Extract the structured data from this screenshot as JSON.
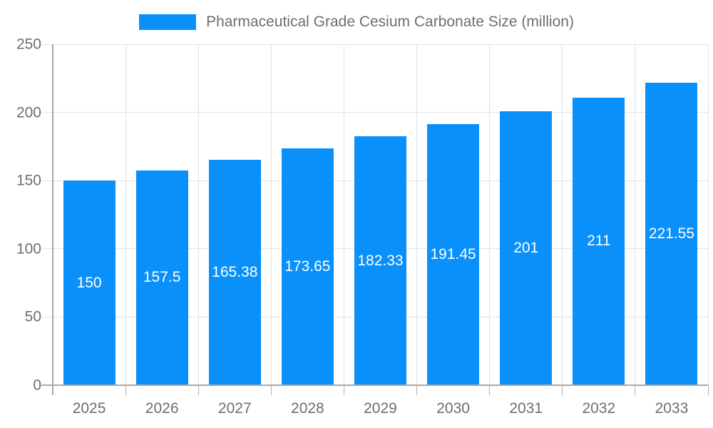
{
  "chart_data": {
    "type": "bar",
    "title": "Pharmaceutical Grade Cesium Carbonate Size (million)",
    "categories": [
      "2025",
      "2026",
      "2027",
      "2028",
      "2029",
      "2030",
      "2031",
      "2032",
      "2033"
    ],
    "values": [
      150,
      157.5,
      165.38,
      173.65,
      182.33,
      191.45,
      201,
      211,
      221.55
    ],
    "xlabel": "",
    "ylabel": "",
    "ylim": [
      0,
      250
    ],
    "yticks": [
      0,
      50,
      100,
      150,
      200,
      250
    ],
    "grid": true,
    "legend_position": "top",
    "bar_color": "#0990FA",
    "value_label_color": "#FFFFFF"
  },
  "colors": {
    "background": "#FFFFFF",
    "gridline": "#E2E2E2",
    "tick": "#B0B0B0",
    "axis_line": "#A8A8A8",
    "axis_text": "#6E6E6E",
    "legend_text": "#6E6E6E"
  }
}
